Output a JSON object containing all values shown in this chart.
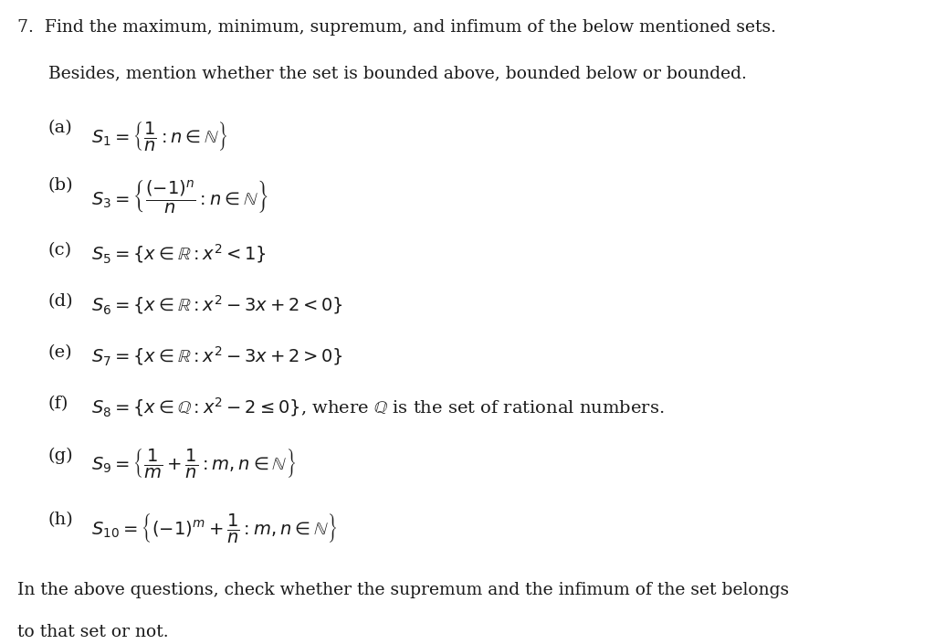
{
  "background_color": "#ffffff",
  "figsize": [
    10.24,
    7.05
  ],
  "dpi": 100,
  "title_line1": "7.  Find the maximum, minimum, supremum, and infimum of the below mentioned sets.",
  "title_line2": "Besides, mention whether the set is bounded above, bounded below or bounded.",
  "items": [
    {
      "label": "(a)",
      "math": "$S_1 = \\left\\{\\dfrac{1}{n} : n \\in \\mathbb{N}\\right\\}$"
    },
    {
      "label": "(b)",
      "math": "$S_3 = \\left\\{\\dfrac{(-1)^n}{n} : n \\in \\mathbb{N}\\right\\}$"
    },
    {
      "label": "(c)",
      "math": "$S_5 = \\left\\{x \\in \\mathbb{R} : x^2 < 1\\right\\}$"
    },
    {
      "label": "(d)",
      "math": "$S_6 = \\left\\{x \\in \\mathbb{R} : x^2 - 3x + 2 < 0\\right\\}$"
    },
    {
      "label": "(e)",
      "math": "$S_7 = \\left\\{x \\in \\mathbb{R} : x^2 - 3x + 2 > 0\\right\\}$"
    },
    {
      "label": "(f)",
      "math": "$S_8 = \\left\\{x \\in \\mathbb{Q} : x^2 - 2 \\leq 0\\right\\}$, where $\\mathbb{Q}$ is the set of rational numbers."
    },
    {
      "label": "(g)",
      "math": "$S_9 = \\left\\{\\dfrac{1}{m} + \\dfrac{1}{n} : m, n \\in \\mathbb{N}\\right\\}$"
    },
    {
      "label": "(h)",
      "math": "$S_{10} = \\left\\{(-1)^m + \\dfrac{1}{n} : m, n \\in \\mathbb{N}\\right\\}$"
    }
  ],
  "footer_line1": "In the above questions, check whether the supremum and the infimum of the set belongs",
  "footer_line2": "to that set or not.",
  "text_color": "#1a1a1a",
  "font_size_title": 13.5,
  "font_size_items": 14,
  "font_size_footer": 13.5
}
